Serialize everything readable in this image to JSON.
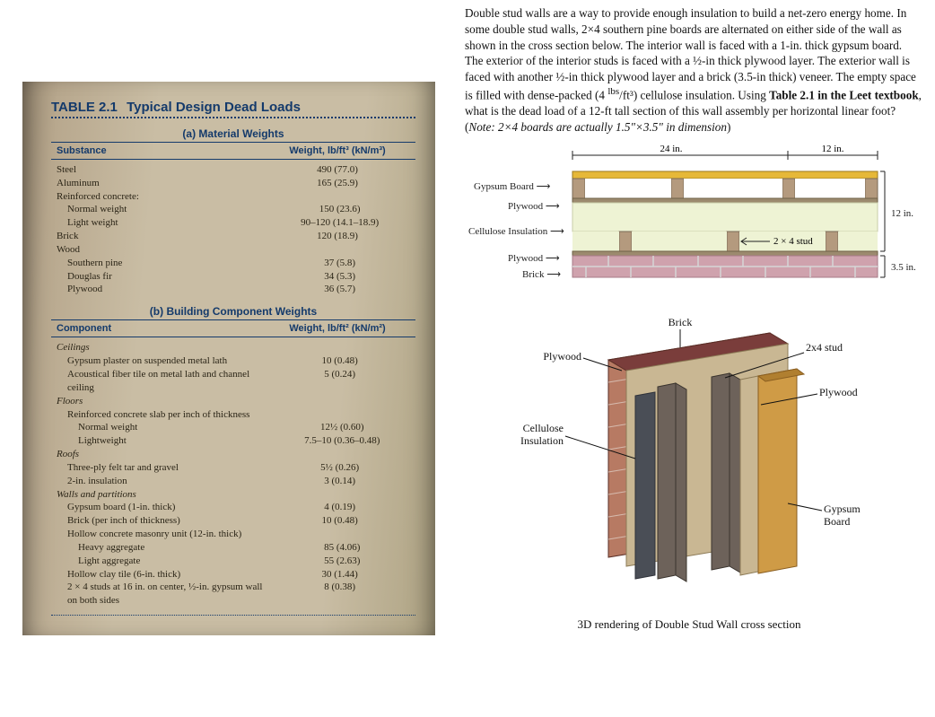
{
  "table": {
    "number": "TABLE 2.1",
    "title": "Typical Design Dead Loads",
    "section_a": {
      "heading": "(a) Material Weights",
      "col1": "Substance",
      "col2": "Weight, lb/ft³ (kN/m³)",
      "rows": [
        {
          "name": "Steel",
          "val": "490 (77.0)",
          "indent": 0
        },
        {
          "name": "Aluminum",
          "val": "165 (25.9)",
          "indent": 0
        },
        {
          "name": "Reinforced concrete:",
          "val": "",
          "indent": 0
        },
        {
          "name": "Normal weight",
          "val": "150 (23.6)",
          "indent": 1
        },
        {
          "name": "Light weight",
          "val": "90–120 (14.1–18.9)",
          "indent": 1
        },
        {
          "name": "Brick",
          "val": "120 (18.9)",
          "indent": 0
        },
        {
          "name": "Wood",
          "val": "",
          "indent": 0
        },
        {
          "name": "Southern pine",
          "val": "37 (5.8)",
          "indent": 1
        },
        {
          "name": "Douglas fir",
          "val": "34 (5.3)",
          "indent": 1
        },
        {
          "name": "Plywood",
          "val": "36 (5.7)",
          "indent": 1
        }
      ]
    },
    "section_b": {
      "heading": "(b) Building Component Weights",
      "col1": "Component",
      "col2": "Weight, lb/ft² (kN/m²)",
      "groups": [
        {
          "cat": "Ceilings",
          "rows": [
            {
              "name": "Gypsum plaster on suspended metal lath",
              "val": "10 (0.48)",
              "indent": 1
            },
            {
              "name": "Acoustical fiber tile on metal lath and channel ceiling",
              "val": "5 (0.24)",
              "indent": 1
            }
          ]
        },
        {
          "cat": "Floors",
          "rows": [
            {
              "name": "Reinforced concrete slab per inch of thickness",
              "val": "",
              "indent": 1
            },
            {
              "name": "Normal weight",
              "val": "12½ (0.60)",
              "indent": 2
            },
            {
              "name": "Lightweight",
              "val": "7.5–10 (0.36–0.48)",
              "indent": 2
            }
          ]
        },
        {
          "cat": "Roofs",
          "rows": [
            {
              "name": "Three-ply felt tar and gravel",
              "val": "5½ (0.26)",
              "indent": 1
            },
            {
              "name": "2-in. insulation",
              "val": "3 (0.14)",
              "indent": 1
            }
          ]
        },
        {
          "cat": "Walls and partitions",
          "rows": [
            {
              "name": "Gypsum board (1-in. thick)",
              "val": "4 (0.19)",
              "indent": 1
            },
            {
              "name": "Brick (per inch of thickness)",
              "val": "10 (0.48)",
              "indent": 1
            },
            {
              "name": "Hollow concrete masonry unit (12-in. thick)",
              "val": "",
              "indent": 1
            },
            {
              "name": "Heavy aggregate",
              "val": "85 (4.06)",
              "indent": 2
            },
            {
              "name": "Light aggregate",
              "val": "55 (2.63)",
              "indent": 2
            },
            {
              "name": "Hollow clay tile (6-in. thick)",
              "val": "30 (1.44)",
              "indent": 1
            },
            {
              "name": "2 × 4 studs at 16 in. on center, ½-in. gypsum wall on both sides",
              "val": "8 (0.38)",
              "indent": 1
            }
          ]
        }
      ]
    }
  },
  "problem": {
    "text_html": "Double stud walls are a way to provide enough insulation to build a net-zero energy home. In some double stud walls, 2×4 southern pine boards are alternated on either side of the wall as shown in the cross section below. The interior wall is faced with a 1-in. thick gypsum board. The exterior of the interior studs is faced with a ½-in thick plywood layer. The exterior wall is faced with another ½-in thick plywood layer and a brick (3.5-in thick) veneer. The empty space is filled with dense-packed (4 <sup>lbs</sup>/ft³) cellulose insulation. Using <b>Table 2.1 in the Leet textbook</b>, what is the dead load of a 12-ft tall section of this wall assembly per horizontal linear foot? (<i>Note: 2×4 boards are actually 1.5\"×3.5\" in dimension</i>)"
  },
  "xsection": {
    "labels": {
      "gypsum": "Gypsum Board",
      "plywood1": "Plywood",
      "cellulose": "Cellulose Insulation",
      "plywood2": "Plywood",
      "brick": "Brick",
      "stud": "2 × 4 stud",
      "dim24": "24 in.",
      "dim12top": "12 in.",
      "dim12r": "12 in.",
      "dim35r": "3.5 in."
    },
    "colors": {
      "gypsum": "#e6b838",
      "stud": "#b49a7e",
      "plywood": "#9c8a6e",
      "cellulose": "#eef3d4",
      "brick_fill": "#cfa2ad",
      "brick_mortar": "#d6d6d6",
      "dim_line": "#222222",
      "bg": "#ffffff"
    }
  },
  "iso": {
    "caption": "3D rendering of Double Stud Wall cross section",
    "labels": {
      "brick": "Brick",
      "plywood": "Plywood",
      "cellulose": "Cellulose Insulation",
      "stud": "2x4 stud",
      "plywood2": "Plywood",
      "gypsum": "Gypsum Board"
    },
    "colors": {
      "brick_face": "#7a3d3b",
      "brick_side": "#b77a63",
      "plywood": "#c9b793",
      "stud": "#6d625a",
      "cellulose": "#4a4e56",
      "gypsum": "#cf9b46"
    }
  }
}
